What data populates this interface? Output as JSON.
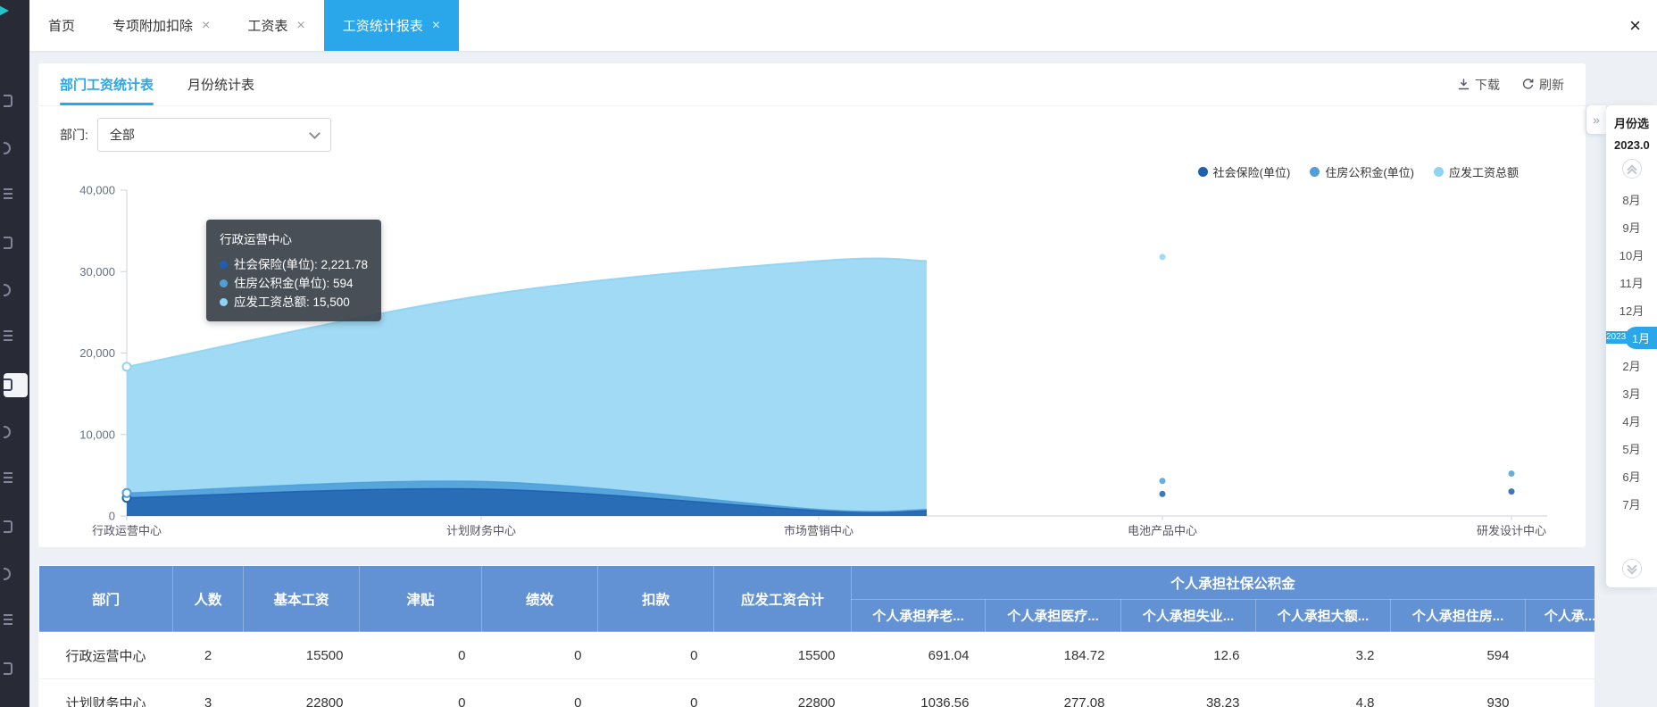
{
  "colors": {
    "accent": "#2aa7ea",
    "table_header": "#6292d4",
    "sidebar_bg": "#282b35",
    "page_bg": "#edf1f6"
  },
  "icons": {
    "close": "×",
    "collapse": "»"
  },
  "sidebar": {
    "icon_count": 13,
    "active_index": 6
  },
  "tabs": {
    "items": [
      {
        "label": "首页",
        "closable": false,
        "active": false
      },
      {
        "label": "专项附加扣除",
        "closable": true,
        "active": false
      },
      {
        "label": "工资表",
        "closable": true,
        "active": false
      },
      {
        "label": "工资统计报表",
        "closable": true,
        "active": true
      }
    ]
  },
  "subtabs": [
    {
      "label": "部门工资统计表",
      "active": true
    },
    {
      "label": "月份统计表",
      "active": false
    }
  ],
  "toolbar": {
    "download_label": "下载",
    "refresh_label": "刷新"
  },
  "filter": {
    "label": "部门:",
    "value": "全部"
  },
  "chart_data": {
    "type": "area",
    "stacked": true,
    "title": "",
    "categories": [
      "行政运营中心",
      "计划财务中心",
      "市场营销中心",
      "电池产品中心",
      "研发设计中心"
    ],
    "series": [
      {
        "name": "社会保险(单位)",
        "color": "#1f5fae",
        "values": [
          2221.78,
          3300,
          650,
          null,
          null
        ]
      },
      {
        "name": "住房公积金(单位)",
        "color": "#4f9fda",
        "values": [
          594,
          930,
          150,
          null,
          null
        ]
      },
      {
        "name": "应发工资总额",
        "color": "#8fd3f2",
        "values": [
          15500,
          22800,
          30500,
          null,
          null
        ]
      }
    ],
    "scatter_points": [
      {
        "category": "电池产品中心",
        "series": "应发工资总额",
        "value": 31800
      },
      {
        "category": "电池产品中心",
        "series": "住房公积金(单位)",
        "value": 4300
      },
      {
        "category": "电池产品中心",
        "series": "社会保险(单位)",
        "value": 2700
      },
      {
        "category": "研发设计中心",
        "series": "住房公积金(单位)",
        "value": 5200
      },
      {
        "category": "研发设计中心",
        "series": "社会保险(单位)",
        "value": 3000
      }
    ],
    "ylim": [
      0,
      40000
    ],
    "yticks": [
      "0",
      "10,000",
      "20,000",
      "30,000",
      "40,000"
    ],
    "legend_position": "top-right",
    "grid": false
  },
  "tooltip": {
    "title": "行政运营中心",
    "rows": [
      {
        "text": "社会保险(单位): 2,221.78",
        "color": "#1f5fae"
      },
      {
        "text": "住房公积金(单位): 594",
        "color": "#4f9fda"
      },
      {
        "text": "应发工资总额: 15,500",
        "color": "#8fd3f2"
      }
    ]
  },
  "month_panel": {
    "title": "月份选",
    "year": "2023.0",
    "months": [
      "8月",
      "9月",
      "10月",
      "11月",
      "12月",
      "1月",
      "2月",
      "3月",
      "4月",
      "5月",
      "6月",
      "7月"
    ],
    "selected": "1月",
    "selected_year_badge": "2023"
  },
  "table": {
    "columns": [
      "部门",
      "人数",
      "基本工资",
      "津贴",
      "绩效",
      "扣款",
      "应发工资合计"
    ],
    "group_header": "个人承担社保公积金",
    "group_columns": [
      "个人承担养老...",
      "个人承担医疗...",
      "个人承担失业...",
      "个人承担大额...",
      "个人承担住房...",
      "个人承..."
    ],
    "rows": [
      [
        "行政运营中心",
        "2",
        "15500",
        "0",
        "0",
        "0",
        "15500",
        "691.04",
        "184.72",
        "12.6",
        "3.2",
        "594",
        ""
      ],
      [
        "计划财务中心",
        "3",
        "22800",
        "0",
        "0",
        "0",
        "22800",
        "1036.56",
        "277.08",
        "38.23",
        "4.8",
        "930",
        ""
      ]
    ]
  }
}
